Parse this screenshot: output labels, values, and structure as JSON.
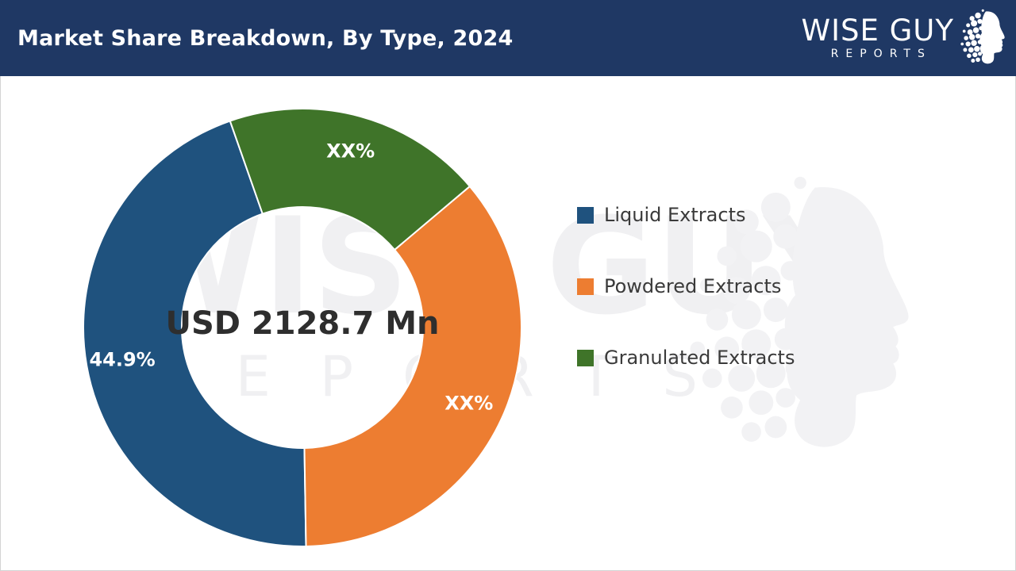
{
  "header": {
    "title": "Market Share Breakdown, By Type, 2024",
    "bg_color": "#1f3864",
    "logo": {
      "line1": "WISE GUY",
      "line2": "REPORTS"
    }
  },
  "watermark": {
    "line1": "WISE GUY",
    "line2": "REPORTS"
  },
  "chart_data": {
    "type": "pie",
    "subtype": "donut",
    "title": "Market Share Breakdown, By Type, 2024",
    "center_label": "USD 2128.7 Mn",
    "unit": "percent",
    "start_angle_deg": 109.3,
    "direction": "counterclockwise",
    "legend_position": "right",
    "slices": [
      {
        "name": "Liquid Extracts",
        "label": "44.9%",
        "value_pct": 44.9,
        "color": "#1f527e"
      },
      {
        "name": "Powdered Extracts",
        "label": "XX%",
        "value_pct": 35.9,
        "color": "#ed7d31"
      },
      {
        "name": "Granulated Extracts",
        "label": "XX%",
        "value_pct": 19.2,
        "color": "#3f7429"
      }
    ],
    "slice_label_color": "#ffffff",
    "note": "value_pct for slices labeled XX% estimated from arc geometry"
  }
}
